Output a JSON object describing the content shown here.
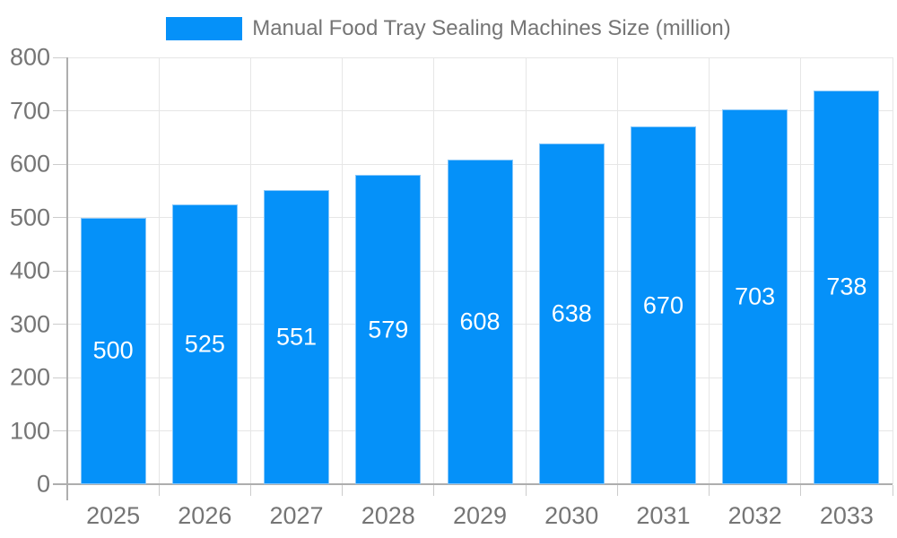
{
  "chart_data": {
    "type": "bar",
    "title": "Manual Food Tray Sealing Machines Size (million)",
    "categories": [
      "2025",
      "2026",
      "2027",
      "2028",
      "2029",
      "2030",
      "2031",
      "2032",
      "2033"
    ],
    "values": [
      500,
      525,
      551,
      579,
      608,
      638,
      670,
      703,
      738
    ],
    "xlabel": "",
    "ylabel": "",
    "ylim": [
      0,
      800
    ],
    "ytick_interval": 100,
    "ytick_labels": [
      "0",
      "100",
      "200",
      "300",
      "400",
      "500",
      "600",
      "700",
      "800"
    ],
    "grid": true,
    "legend_position": "top-center",
    "value_labels_position": "inside-middle",
    "colors": {
      "bar_fill": "#0591f9",
      "bar_border": "#87c7fa",
      "value_label": "#ffffff",
      "axis_text": "#757575",
      "gridline": "#e6e6e6",
      "axis_line": "#aeaeae",
      "tick": "#cccccc",
      "background": "#ffffff"
    }
  }
}
